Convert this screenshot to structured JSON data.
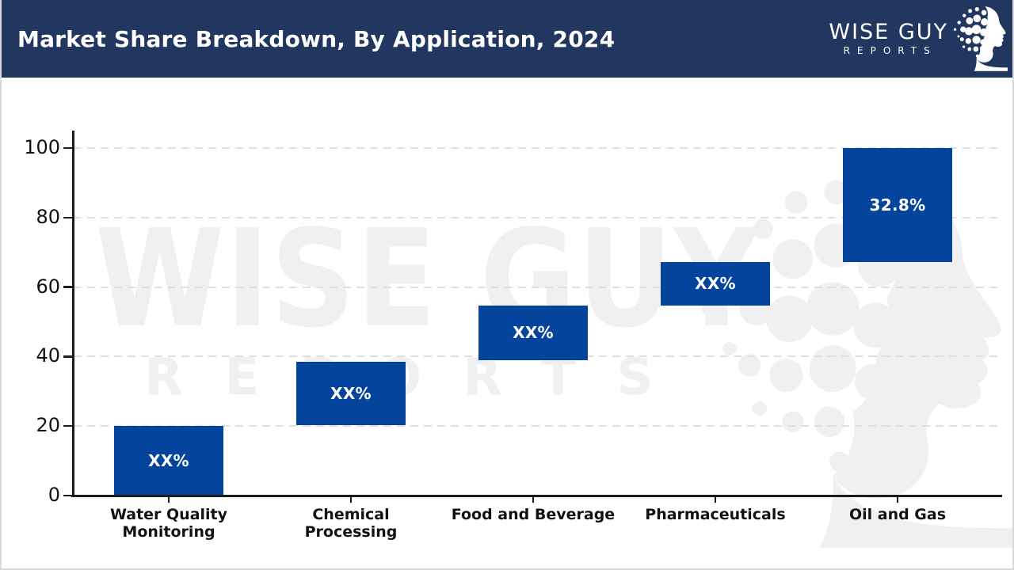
{
  "header": {
    "title": "Market Share Breakdown, By Application, 2024",
    "logo": {
      "wordmark": "WISE GUY",
      "subtext": "REPORTS"
    }
  },
  "watermark": {
    "wordmark": "WISE GUY",
    "subtext": "REPORTS"
  },
  "colors": {
    "header_bg": "#21375f",
    "title_text": "#ffffff",
    "bar": "#04449c",
    "bar_label": "#ffffff",
    "axis": "#1c1c1c",
    "grid": "#e0e0e0",
    "tick_label": "#111111",
    "watermark": "#f0f0f2",
    "frame_border": "#d8d8d8"
  },
  "chart_data": {
    "type": "bar",
    "subtype": "waterfall",
    "title": "Market Share Breakdown, By Application, 2024",
    "xlabel": "",
    "ylabel": "",
    "ylim": [
      0,
      105
    ],
    "yticks": [
      0,
      20,
      40,
      60,
      80,
      100
    ],
    "grid": "horizontal-dashed",
    "legend": "none",
    "categories": [
      "Water Quality Monitoring",
      "Chemical Processing",
      "Food and Beverage",
      "Pharmaceuticals",
      "Oil and Gas"
    ],
    "segments": [
      {
        "category": [
          "Water Quality",
          "Monitoring"
        ],
        "start": 0,
        "end": 20.0,
        "label": "XX%"
      },
      {
        "category": [
          "Chemical",
          "Processing"
        ],
        "start": 20.2,
        "end": 38.4,
        "label": "XX%"
      },
      {
        "category": [
          "Food and Beverage"
        ],
        "start": 39.0,
        "end": 54.7,
        "label": "XX%"
      },
      {
        "category": [
          "Pharmaceuticals"
        ],
        "start": 54.7,
        "end": 67.2,
        "label": "XX%"
      },
      {
        "category": [
          "Oil and Gas"
        ],
        "start": 67.2,
        "end": 100.0,
        "label": "32.8%"
      }
    ]
  }
}
